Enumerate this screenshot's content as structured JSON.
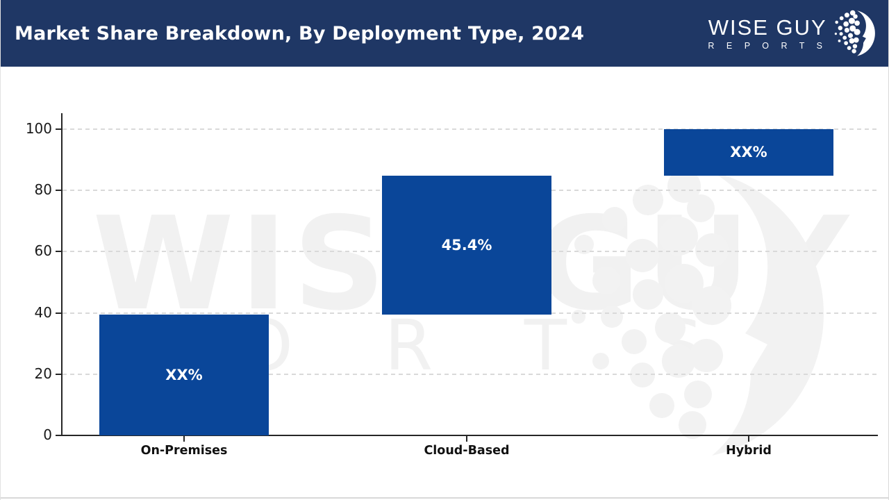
{
  "header": {
    "title": "Market Share Breakdown, By Deployment Type, 2024",
    "logo": {
      "line1": "WISE GUY",
      "line2": "R E P O R T S"
    }
  },
  "watermark": {
    "line1": "WISE GUY",
    "line2": "P O R T S"
  },
  "colors": {
    "header_bg": "#1f3765",
    "bar": "#0a4699",
    "grid": "#d9d9d9",
    "axis": "#262626",
    "bar_label_text": "#ffffff",
    "title_text": "#ffffff",
    "watermark": "#f1f1f1"
  },
  "icons": {
    "logo_head": "wiseguy-head-icon"
  },
  "chart_data": {
    "type": "bar",
    "subtype": "waterfall",
    "title": "Market Share Breakdown, By Deployment Type, 2024",
    "categories": [
      "On-Premises",
      "Cloud-Based",
      "Hybrid"
    ],
    "series": [
      {
        "name": "Market Share",
        "segments": [
          {
            "category": "On-Premises",
            "start": 0,
            "end": 39.5,
            "value": 39.5,
            "label": "XX%"
          },
          {
            "category": "Cloud-Based",
            "start": 39.5,
            "end": 84.9,
            "value": 45.4,
            "label": "45.4%"
          },
          {
            "category": "Hybrid",
            "start": 84.9,
            "end": 100,
            "value": 15.1,
            "label": "XX%"
          }
        ]
      }
    ],
    "xlabel": "",
    "ylabel": "",
    "ylim": [
      0,
      100
    ],
    "yticks": [
      0,
      20,
      40,
      60,
      80,
      100
    ],
    "grid": "horizontal-dashed",
    "legend": "none"
  }
}
